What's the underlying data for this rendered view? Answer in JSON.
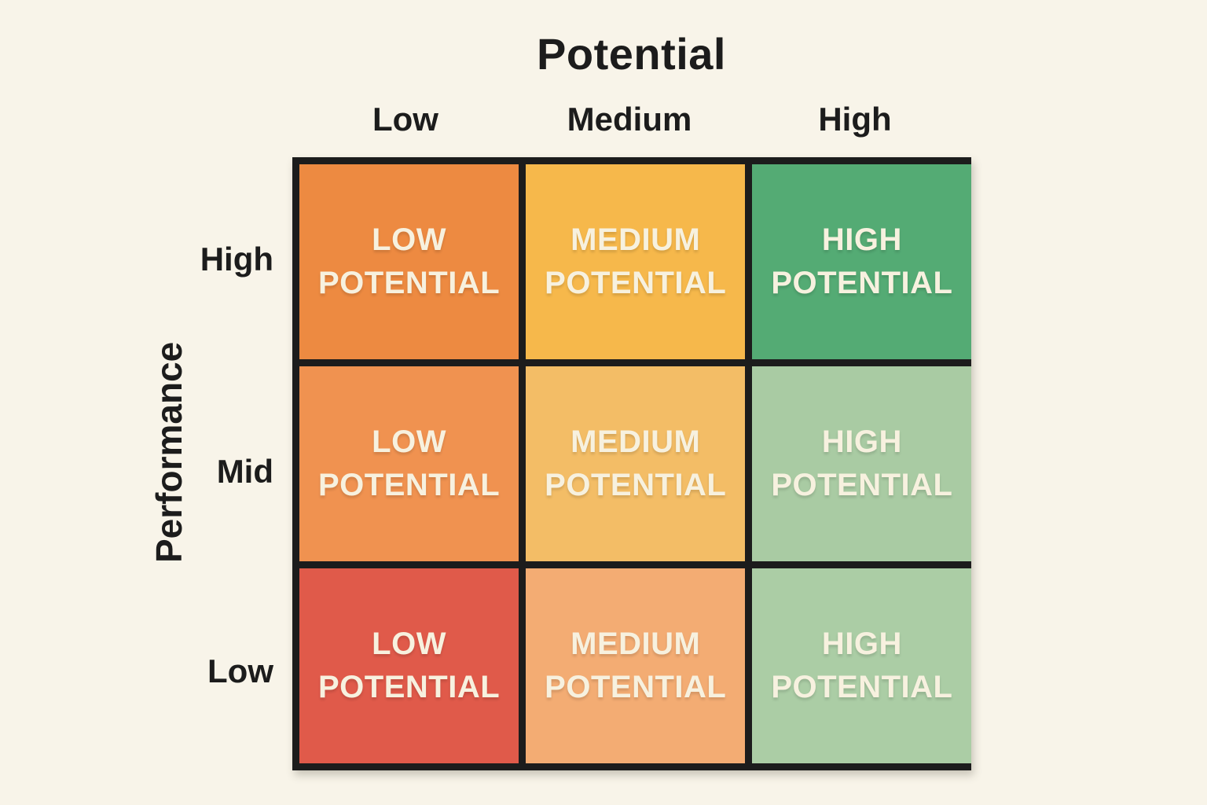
{
  "palette": {
    "background": "#F8F4E9",
    "grid_border": "#1C1C1C",
    "cell_text": "#F7F1DF",
    "axis_text": "#1C1C1C"
  },
  "matrix": {
    "title": "Potential",
    "x_axis": {
      "label": "Potential",
      "columns": [
        "Low",
        "Medium",
        "High"
      ]
    },
    "y_axis": {
      "label": "Performance",
      "rows": [
        "High",
        "Mid",
        "Low"
      ]
    },
    "cells": [
      [
        {
          "label": "LOW POTENTIAL",
          "color": "#ED8A41"
        },
        {
          "label": "MEDIUM POTENTIAL",
          "color": "#F6B84B"
        },
        {
          "label": "HIGH POTENTIAL",
          "color": "#54AB74"
        }
      ],
      [
        {
          "label": "LOW POTENTIAL",
          "color": "#F09250"
        },
        {
          "label": "MEDIUM POTENTIAL",
          "color": "#F3BD66"
        },
        {
          "label": "HIGH POTENTIAL",
          "color": "#A9CBA3"
        }
      ],
      [
        {
          "label": "LOW POTENTIAL",
          "color": "#E05A4A"
        },
        {
          "label": "MEDIUM POTENTIAL",
          "color": "#F3AC73"
        },
        {
          "label": "HIGH POTENTIAL",
          "color": "#ABCDA5"
        }
      ]
    ]
  }
}
